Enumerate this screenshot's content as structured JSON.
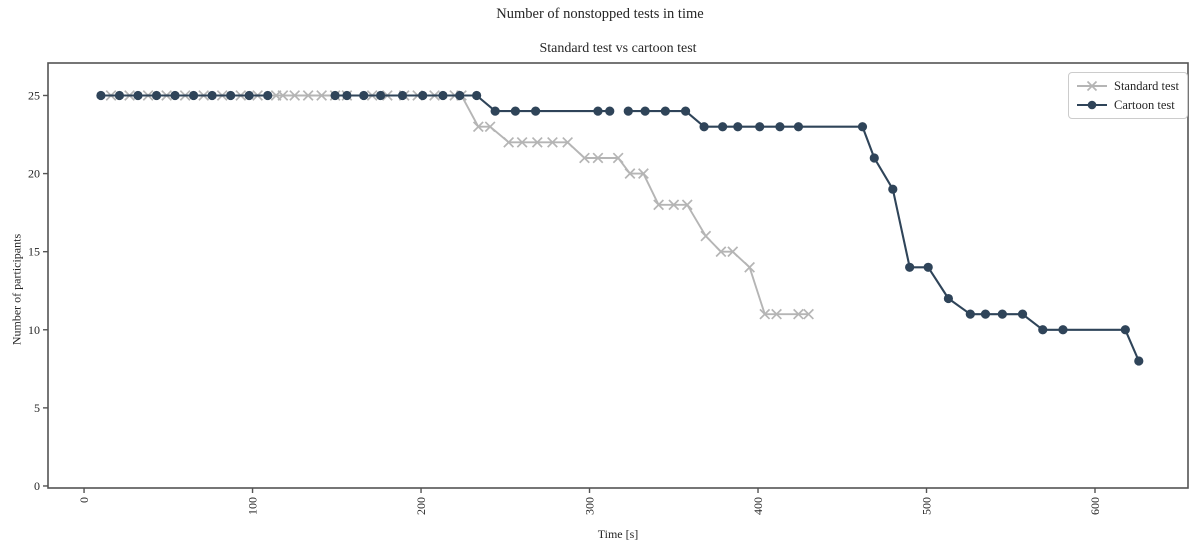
{
  "figure": {
    "background": "#ffffff",
    "text_color": "#262626",
    "spine_color": "#545454",
    "legend_border_color": "#cccccc"
  },
  "chart_data": {
    "type": "line",
    "title": "Number of nonstopped tests in time",
    "subtitle": "Standard test vs cartoon test",
    "xlabel": "Time [s]",
    "ylabel": "Number of participants",
    "xlim": [
      -21.4,
      655.2
    ],
    "ylim": [
      -0.13,
      27.08
    ],
    "x_ticks": [
      0,
      100,
      200,
      300,
      400,
      500,
      600
    ],
    "y_ticks": [
      0,
      5,
      10,
      15,
      20,
      25
    ],
    "x_tick_rotation": 90,
    "grid": false,
    "legend_position": "upper right",
    "series": [
      {
        "name": "Standard test",
        "color": "#b5b5b5",
        "marker": "x",
        "line_width": 1.9,
        "segments": [
          [
            [
              16,
              25
            ],
            [
              27,
              25
            ],
            [
              38,
              25
            ],
            [
              49,
              25
            ],
            [
              60,
              25
            ],
            [
              71,
              25
            ],
            [
              82,
              25
            ],
            [
              93,
              25
            ],
            [
              103,
              25
            ],
            [
              114,
              25
            ],
            [
              118,
              25
            ],
            [
              125,
              25
            ],
            [
              133,
              25
            ],
            [
              141,
              25
            ],
            [
              149,
              25
            ],
            [
              156,
              25
            ],
            [
              171,
              25
            ],
            [
              180,
              25
            ],
            [
              190,
              25
            ],
            [
              198,
              25
            ],
            [
              208,
              25
            ],
            [
              220,
              25
            ],
            [
              224,
              25
            ],
            [
              234,
              23
            ],
            [
              241,
              23
            ],
            [
              252,
              22
            ],
            [
              260,
              22
            ],
            [
              269,
              22
            ],
            [
              278,
              22
            ],
            [
              287,
              22
            ],
            [
              297,
              21
            ],
            [
              305,
              21
            ],
            [
              317,
              21
            ],
            [
              324,
              20
            ],
            [
              332,
              20
            ],
            [
              341,
              18
            ],
            [
              350,
              18
            ],
            [
              358,
              18
            ],
            [
              369,
              16
            ],
            [
              378,
              15
            ],
            [
              385,
              15
            ],
            [
              395,
              14
            ],
            [
              404,
              11
            ],
            [
              411,
              11
            ],
            [
              424,
              11
            ],
            [
              430,
              11
            ]
          ]
        ]
      },
      {
        "name": "Cartoon test",
        "color": "#2f4459",
        "marker": "circle",
        "line_width": 2.1,
        "segments": [
          [
            [
              10,
              25
            ],
            [
              21,
              25
            ],
            [
              32,
              25
            ],
            [
              43,
              25
            ],
            [
              54,
              25
            ],
            [
              65,
              25
            ],
            [
              76,
              25
            ],
            [
              87,
              25
            ],
            [
              98,
              25
            ],
            [
              109,
              25
            ]
          ],
          [
            [
              149,
              25
            ],
            [
              156,
              25
            ],
            [
              166,
              25
            ],
            [
              176,
              25
            ],
            [
              189,
              25
            ],
            [
              201,
              25
            ],
            [
              213,
              25
            ],
            [
              223,
              25
            ],
            [
              233,
              25
            ],
            [
              244,
              24
            ],
            [
              256,
              24
            ],
            [
              268,
              24
            ],
            [
              305,
              24
            ],
            [
              312,
              24
            ]
          ],
          [
            [
              323,
              24
            ],
            [
              333,
              24
            ],
            [
              345,
              24
            ],
            [
              357,
              24
            ],
            [
              368,
              23
            ],
            [
              379,
              23
            ],
            [
              388,
              23
            ],
            [
              401,
              23
            ],
            [
              413,
              23
            ],
            [
              424,
              23
            ],
            [
              462,
              23
            ],
            [
              469,
              21
            ],
            [
              480,
              19
            ],
            [
              490,
              14
            ],
            [
              501,
              14
            ],
            [
              513,
              12
            ],
            [
              526,
              11
            ],
            [
              535,
              11
            ],
            [
              545,
              11
            ],
            [
              557,
              11
            ],
            [
              569,
              10
            ],
            [
              581,
              10
            ],
            [
              618,
              10
            ],
            [
              626,
              8
            ]
          ]
        ]
      }
    ]
  }
}
